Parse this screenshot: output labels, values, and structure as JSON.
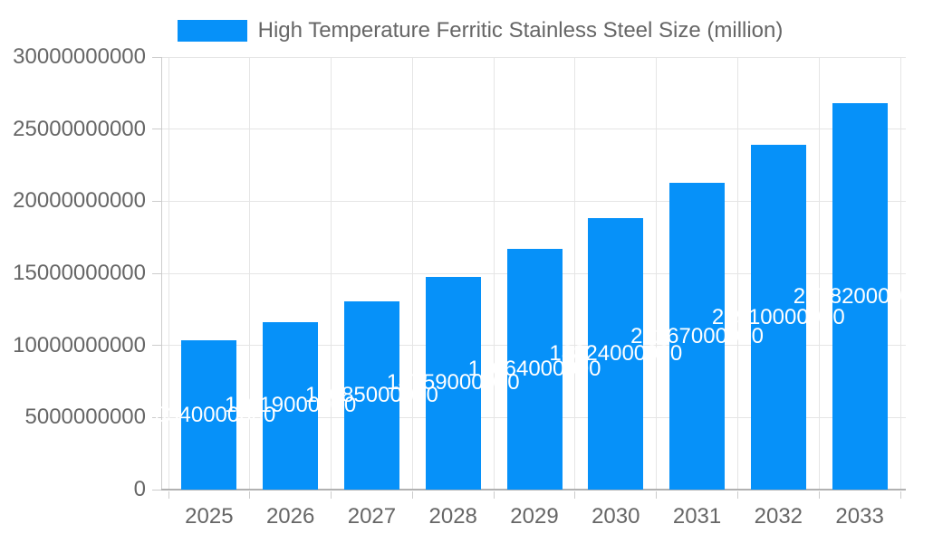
{
  "chart_data": {
    "type": "bar",
    "legend_label": "High Temperature Ferritic Stainless Steel Size (million)",
    "categories": [
      "2025",
      "2026",
      "2027",
      "2028",
      "2029",
      "2030",
      "2031",
      "2032",
      "2033"
    ],
    "values": [
      10340000000,
      11619000000,
      13085000000,
      14759000000,
      16664000000,
      18824000000,
      21267000000,
      23910000000,
      26782000000
    ],
    "value_labels": [
      "10340000000",
      "11619000000",
      "13085000000",
      "14759000000",
      "16664000000",
      "18824000000",
      "21267000000",
      "23910000000",
      "26782000000"
    ],
    "ylim": [
      0,
      30000000000
    ],
    "yticks": [
      0,
      5000000000,
      10000000000,
      15000000000,
      20000000000,
      25000000000,
      30000000000
    ],
    "ytick_labels": [
      "0",
      "5000000000",
      "10000000000",
      "15000000000",
      "20000000000",
      "25000000000",
      "30000000000"
    ],
    "grid": true,
    "legend_position": "top",
    "colors": {
      "bar": "#0691f9",
      "axis_text": "#666666",
      "gridline": "#e5e5e5",
      "axis_line": "#b1b1b1",
      "tick": "#cccccc",
      "bar_label": "#ffffff"
    }
  }
}
